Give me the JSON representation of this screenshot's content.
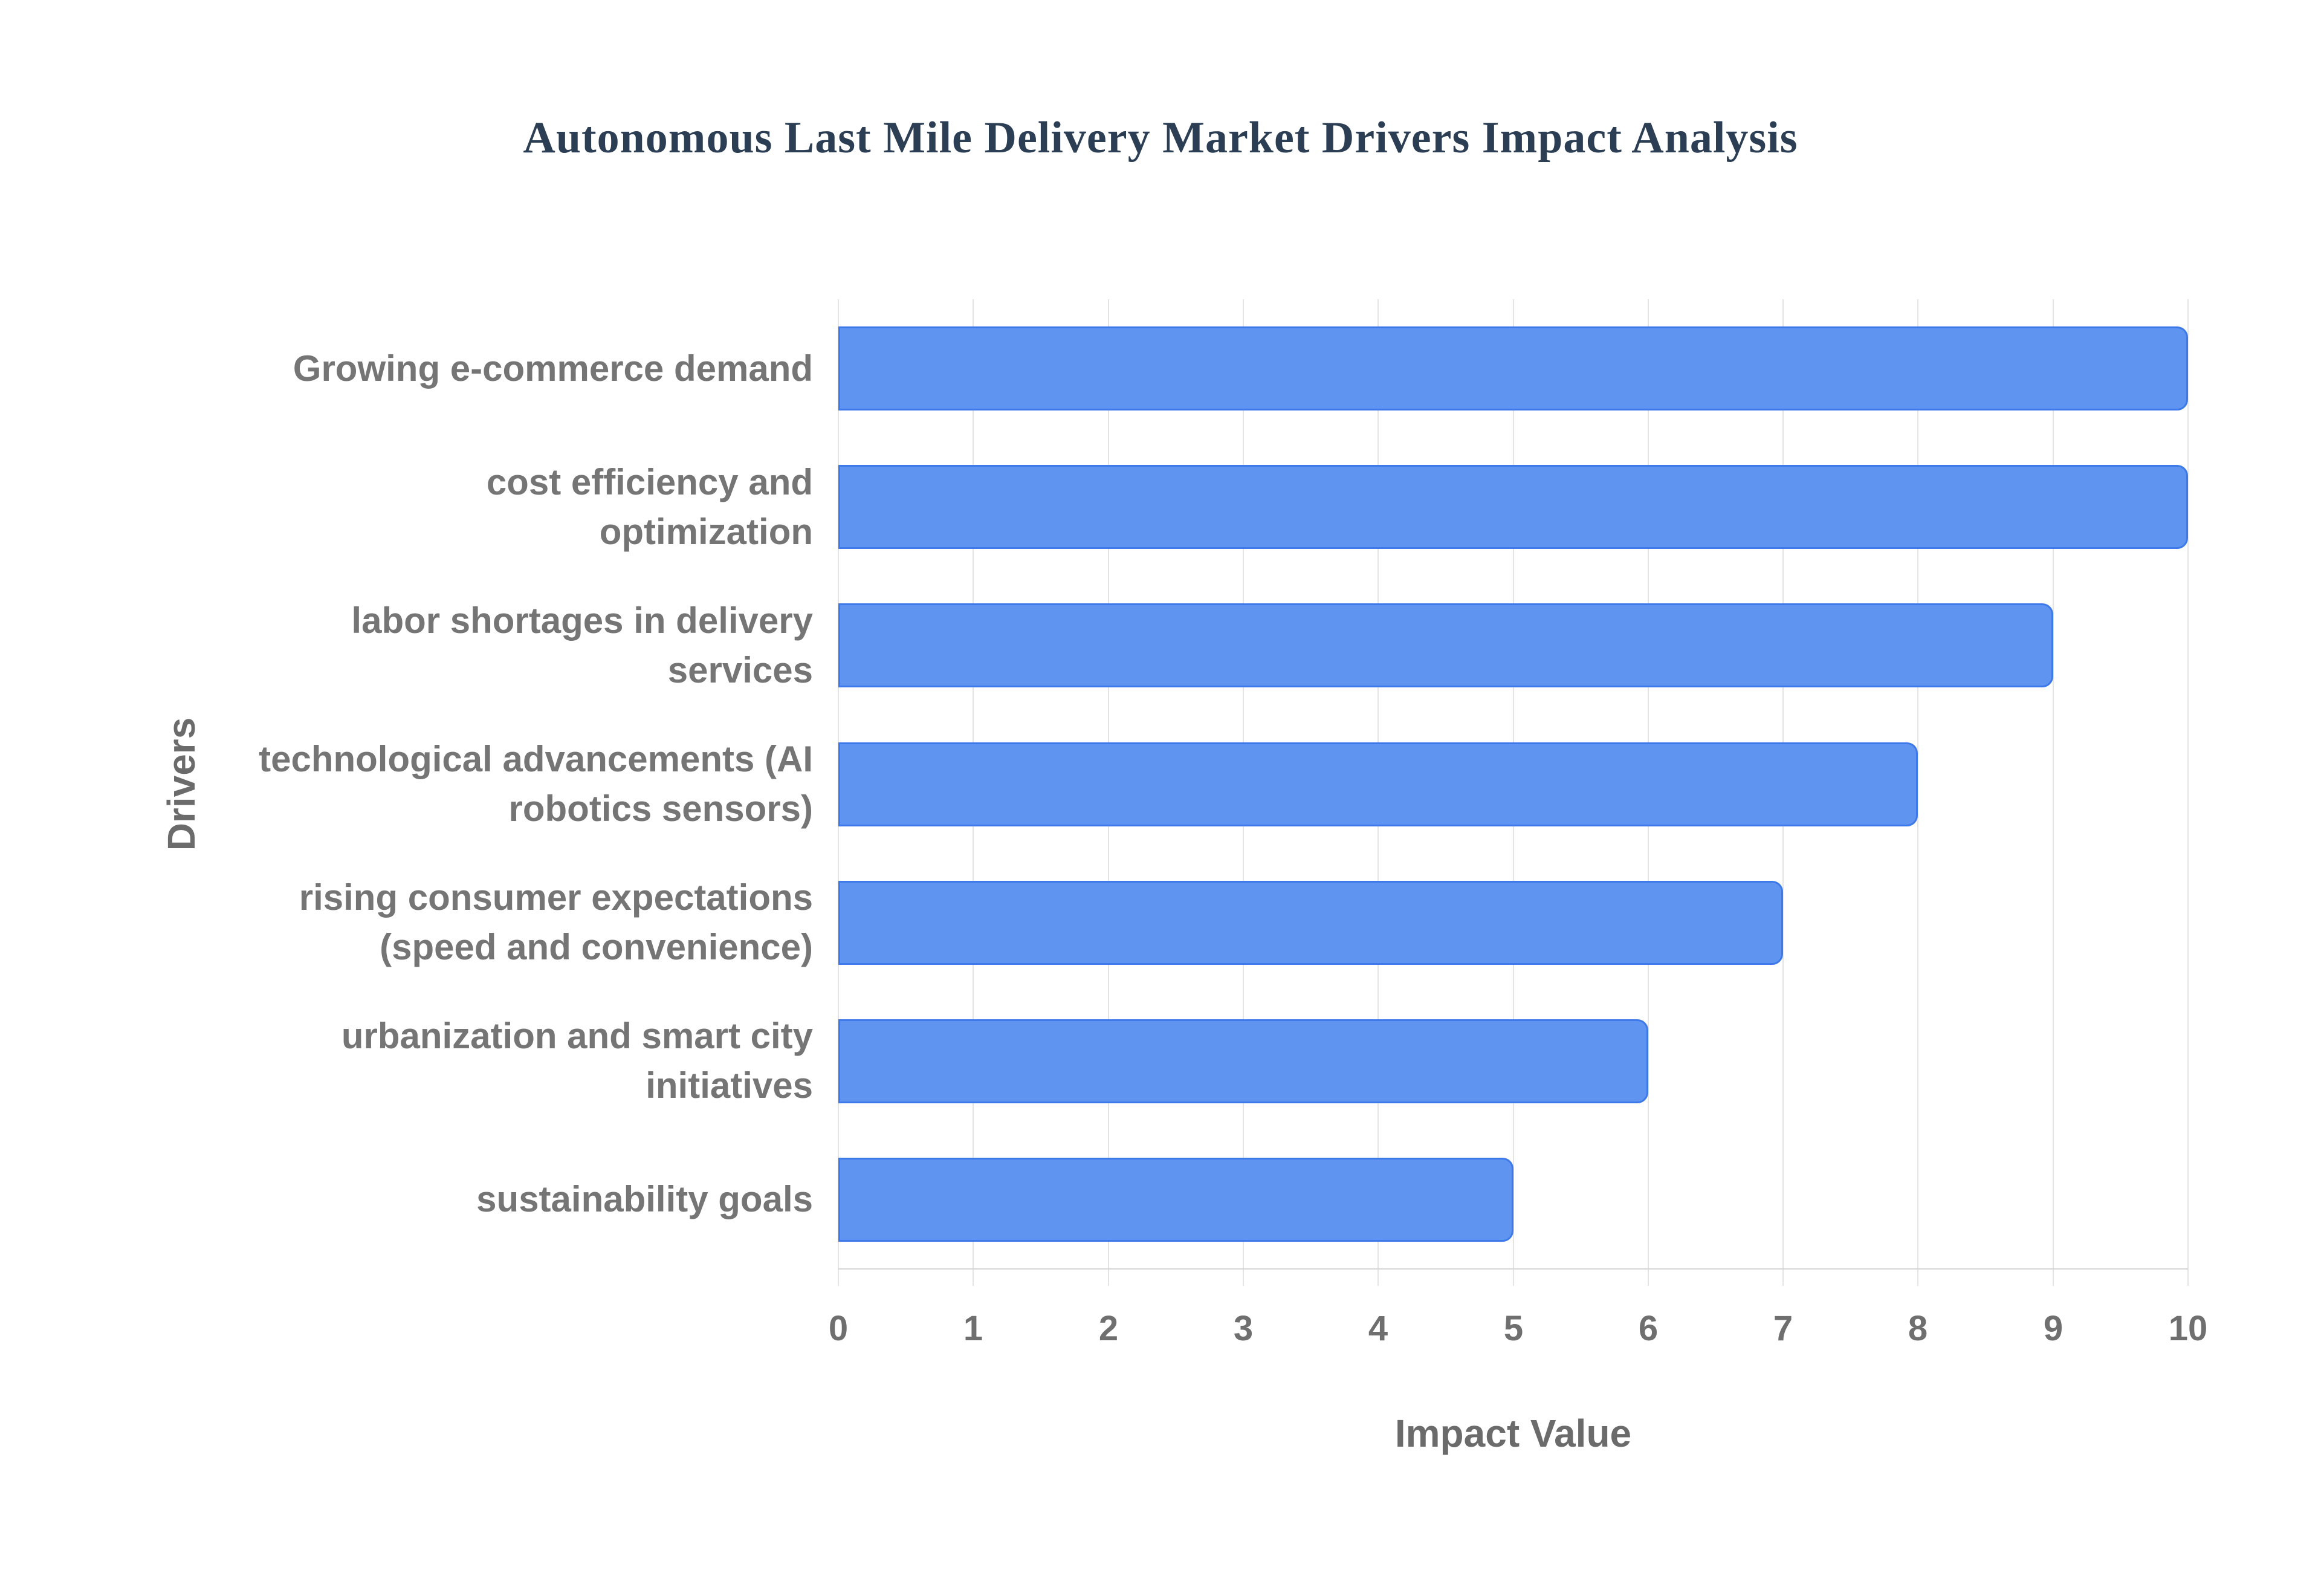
{
  "chart_data": {
    "type": "bar",
    "orientation": "horizontal",
    "title": "Autonomous Last Mile Delivery Market Drivers Impact Analysis",
    "xlabel": "Impact Value",
    "ylabel": "Drivers",
    "xlim": [
      0,
      10
    ],
    "x_ticks": [
      0,
      1,
      2,
      3,
      4,
      5,
      6,
      7,
      8,
      9,
      10
    ],
    "grid": true,
    "legend": "none",
    "categories": [
      "Growing e-commerce demand",
      "cost efficiency and optimization",
      "labor shortages in delivery services",
      "technological advancements (AI robotics sensors)",
      "rising consumer expectations (speed and convenience)",
      "urbanization and smart city initiatives",
      "sustainability goals"
    ],
    "category_lines": [
      [
        "Growing e-commerce demand"
      ],
      [
        "cost efficiency and",
        "optimization"
      ],
      [
        "labor shortages in delivery",
        "services"
      ],
      [
        "technological advancements (AI",
        "robotics sensors)"
      ],
      [
        "rising consumer expectations",
        "(speed and convenience)"
      ],
      [
        "urbanization and smart city",
        "initiatives"
      ],
      [
        "sustainability goals"
      ]
    ],
    "values": [
      10,
      10,
      9,
      8,
      7,
      6,
      5
    ],
    "colors": {
      "background": "#ffffff",
      "bar_fill": "#5f94f1",
      "bar_stroke": "#3e79e9",
      "gridline": "#e4e4e4",
      "baseline": "#d6d6d6",
      "title": "#2b3e54",
      "category_label": "#757575",
      "tick_label": "#6f6f6f",
      "axis_title": "#6b6b6b"
    }
  }
}
